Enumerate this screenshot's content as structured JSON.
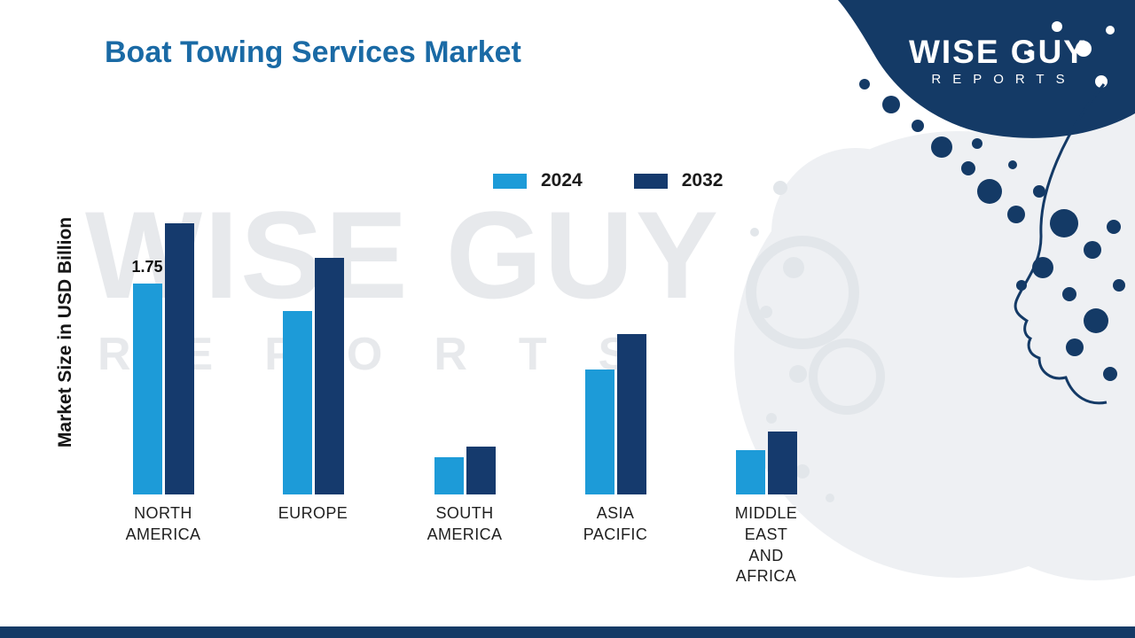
{
  "page": {
    "title": "Boat Towing Services Market"
  },
  "logo": {
    "line1": "WISE GUY",
    "line2": "REPORTS"
  },
  "watermark": {
    "line1": "WISE GUY",
    "line2": "REPORTS"
  },
  "colors": {
    "series_2024": "#1d9bd8",
    "series_2032": "#153a6d",
    "title_blue": "#1a6aa5",
    "footer_navy": "#143a66",
    "watermark_gray": "#e7e9ec"
  },
  "chart_data": {
    "type": "bar",
    "title": "Boat Towing Services Market",
    "xlabel": "",
    "ylabel": "Market Size in USD Billion",
    "categories": [
      "NORTH AMERICA",
      "EUROPE",
      "SOUTH AMERICA",
      "ASIA PACIFIC",
      "MIDDLE EAST AND AFRICA"
    ],
    "series": [
      {
        "name": "2024",
        "color": "#1d9bd8",
        "values": [
          1.75,
          1.52,
          0.31,
          1.04,
          0.37
        ]
      },
      {
        "name": "2032",
        "color": "#153a6d",
        "values": [
          2.25,
          1.96,
          0.4,
          1.33,
          0.52
        ]
      }
    ],
    "annotations": [
      {
        "series": "2024",
        "category": "NORTH AMERICA",
        "text": "1.75"
      }
    ],
    "ylim": [
      0,
      2.5
    ],
    "grid": false,
    "legend_position": "top"
  }
}
